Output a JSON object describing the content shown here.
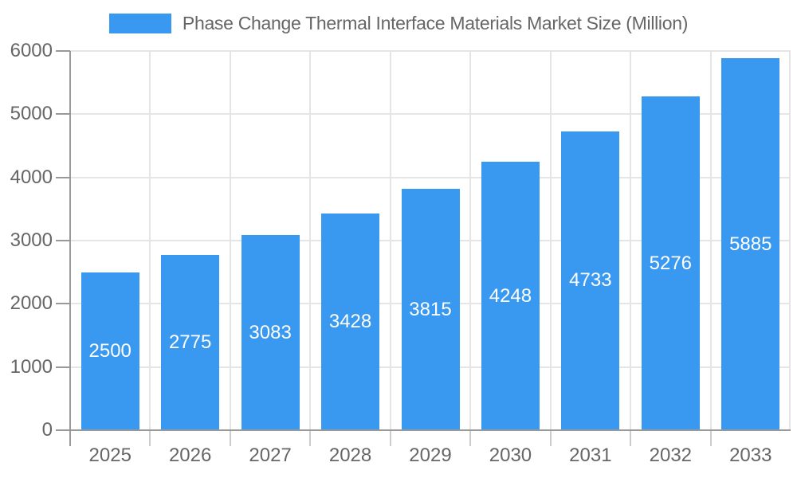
{
  "chart_data": {
    "type": "bar",
    "title": "Phase Change Thermal Interface Materials Market Size (Million)",
    "legend_position": "top",
    "categories": [
      "2025",
      "2026",
      "2027",
      "2028",
      "2029",
      "2030",
      "2031",
      "2032",
      "2033"
    ],
    "values": [
      2500,
      2775,
      3083,
      3428,
      3815,
      4248,
      4733,
      5276,
      5885
    ],
    "xlabel": "",
    "ylabel": "",
    "ylim": [
      0,
      6000
    ],
    "yticks": [
      0,
      1000,
      2000,
      3000,
      4000,
      5000,
      6000
    ],
    "grid": true,
    "colors": {
      "bar": "#3999F0",
      "value_label": "#ffffff",
      "axis_label": "#666666",
      "legend_text": "#666666",
      "grid_line": "#e5e5e5",
      "axis_line": "#999999",
      "x_tick": "#cccccc",
      "background": "#ffffff"
    }
  }
}
